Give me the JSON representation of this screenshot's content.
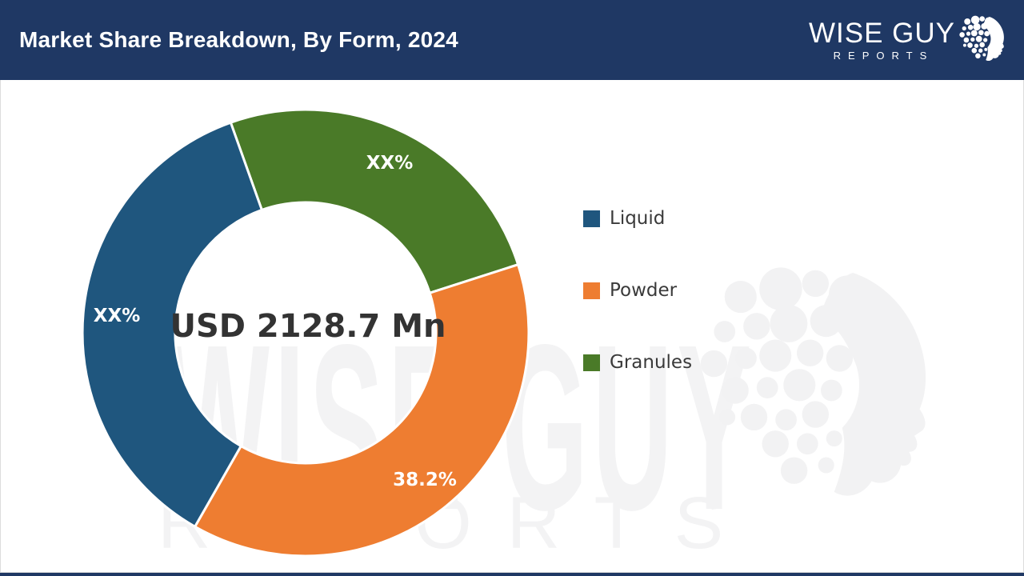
{
  "header": {
    "title": "Market Share Breakdown, By Form, 2024",
    "logo": {
      "line1": "WISE GUY",
      "line2": "REPORTS"
    }
  },
  "watermark": {
    "line1": "WISE GUY",
    "line2": "REPORTS"
  },
  "chart_data": {
    "type": "donut",
    "title": "Market Share Breakdown, By Form, 2024",
    "center_label": "USD 2128.7 Mn",
    "legend_position": "right",
    "segments": [
      {
        "name": "Liquid",
        "label": "XX%",
        "fraction": 0.363,
        "color": "#1f567e"
      },
      {
        "name": "Powder",
        "label": "38.2%",
        "fraction": 0.382,
        "color": "#ee7d31"
      },
      {
        "name": "Granules",
        "label": "XX%",
        "fraction": 0.255,
        "color": "#4a7a28"
      }
    ],
    "draw_order": [
      "Granules",
      "Powder",
      "Liquid"
    ],
    "start_angle_deg": -19.6
  },
  "colors": {
    "header_bg": "#1f3864",
    "footer_bg": "#1f3864",
    "liquid": "#1f567e",
    "powder": "#ee7d31",
    "granules": "#4a7a28",
    "center_text": "#333333",
    "legend_text": "#3a3a3a",
    "watermark": "#f3f3f4",
    "slice_label_text": "#ffffff"
  }
}
